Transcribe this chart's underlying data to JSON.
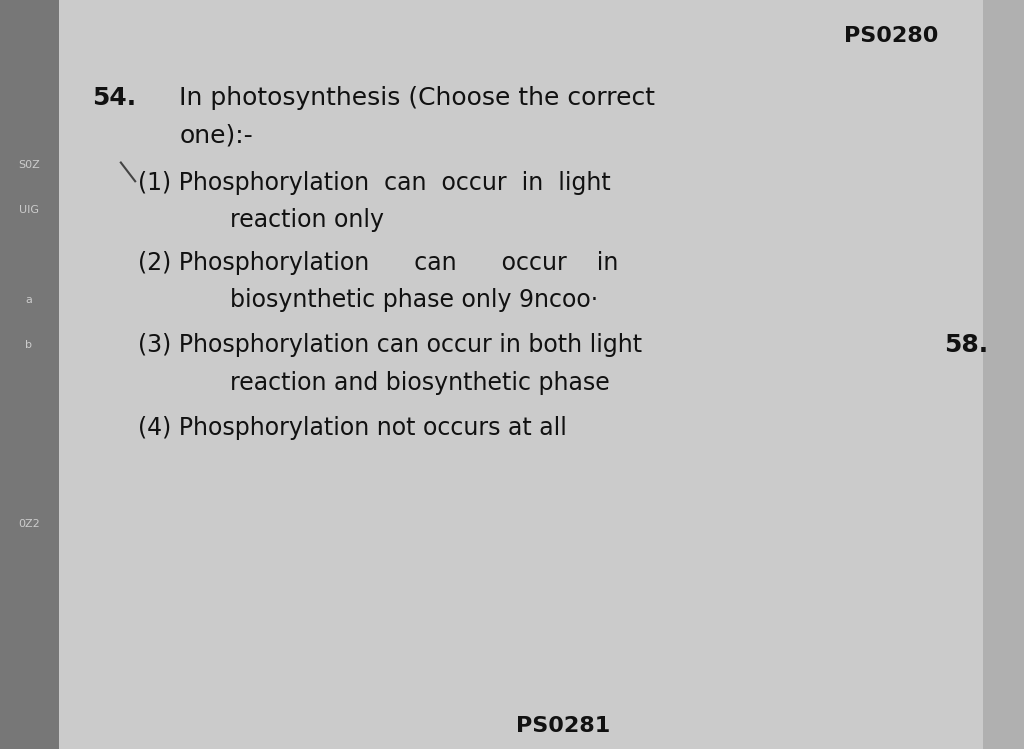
{
  "background_color": "#c8c8c8",
  "page_color": "#d8d8d8",
  "header_text": "PS0280",
  "question_number": "54.",
  "side_number": "58.",
  "footer_text": "PS0281",
  "left_strip_color": "#777777",
  "text_color": "#111111",
  "font_size_main": 18,
  "font_size_header": 16,
  "font_size_option": 17,
  "option2_suffix": "9ncoo",
  "left_labels": [
    [
      "S0Z",
      0.78
    ],
    [
      "UIG",
      0.72
    ],
    [
      "a",
      0.6
    ],
    [
      "b",
      0.54
    ],
    [
      "0Z2",
      0.3
    ]
  ]
}
